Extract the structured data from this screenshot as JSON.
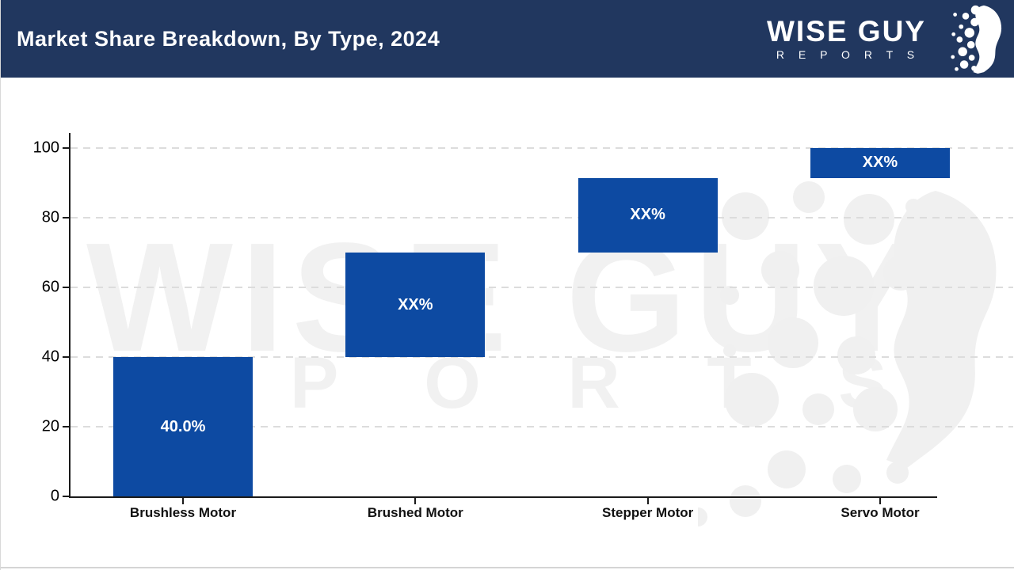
{
  "header": {
    "title": "Market Share Breakdown, By Type, 2024",
    "logo": {
      "line1": "WISE GUY",
      "line2": "R E P O R T S",
      "head_icon": "dotted-head-profile"
    }
  },
  "watermark": {
    "line1": "WISE GUY",
    "line2": "P O R T S",
    "head_icon": "dotted-head-profile"
  },
  "colors": {
    "header_bg": "#21375f",
    "bar_fill": "#0d4aa2",
    "bar_label": "#ffffff",
    "grid": "#dcdcdc",
    "axis": "#1a1a1a",
    "watermark": "#f1f1f1",
    "tick_text": "#000000"
  },
  "chart_data": {
    "type": "bar",
    "subtype": "floating-waterfall",
    "title": "Market Share Breakdown, By Type, 2024",
    "xlabel": "",
    "ylabel": "",
    "ylim": [
      0,
      105
    ],
    "yticks": [
      0,
      20,
      40,
      60,
      80,
      100
    ],
    "grid": "horizontal-dashed",
    "legend": "none",
    "categories": [
      "Brushless Motor",
      "Brushed Motor",
      "Stepper Motor",
      "Servo Motor"
    ],
    "segment_sizes": [
      40,
      30,
      21.4,
      8.6
    ],
    "bars": [
      {
        "category": "Brushless Motor",
        "start": 0,
        "end": 40,
        "label": "40.0%"
      },
      {
        "category": "Brushed Motor",
        "start": 40,
        "end": 70,
        "label": "XX%"
      },
      {
        "category": "Stepper Motor",
        "start": 70,
        "end": 91.4,
        "label": "XX%"
      },
      {
        "category": "Servo Motor",
        "start": 91.4,
        "end": 100,
        "label": "XX%"
      }
    ]
  }
}
